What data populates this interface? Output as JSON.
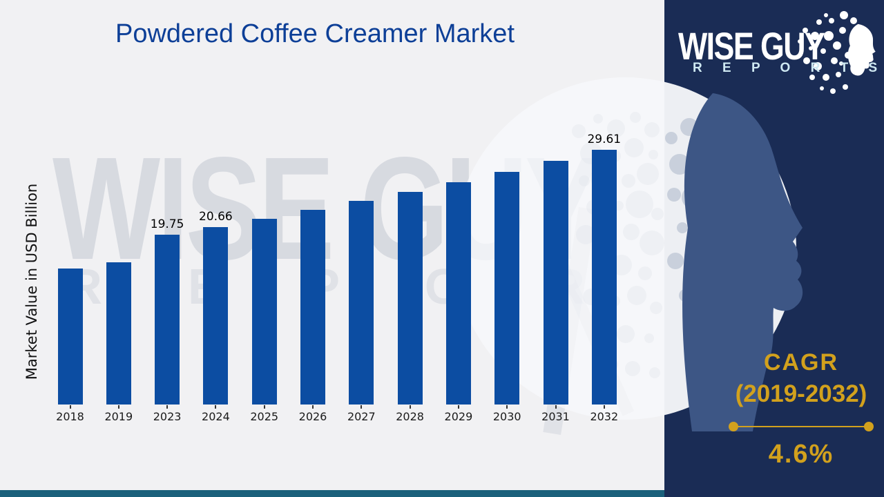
{
  "header": {
    "title": "Powdered Coffee Creamer Market"
  },
  "watermark": {
    "line1": "WISE GUY",
    "line2": "R E P O R T S"
  },
  "logo": {
    "line1": "WISE GUY",
    "line2": "R E P O R T S"
  },
  "cagr": {
    "label": "CAGR",
    "range": "(2019-2032)",
    "value": "4.6%"
  },
  "colors": {
    "bar": "#0c4da2",
    "title": "#0d3f97",
    "panel": "#1a2c55",
    "panel_face": "#3d5685",
    "panel_circle": "#edeff3",
    "panel_circle_dots": "#c9d0dc",
    "gold": "#d2a11d",
    "teal": "#1a607b",
    "chart_text": "#1a1a1a"
  },
  "chart_data": {
    "type": "bar",
    "title": "Powdered Coffee Creamer Market",
    "xlabel": "",
    "ylabel": "Market Value in USD Billion",
    "categories": [
      "2018",
      "2019",
      "2023",
      "2024",
      "2025",
      "2026",
      "2027",
      "2028",
      "2029",
      "2030",
      "2031",
      "2032"
    ],
    "values": [
      15.77,
      16.5,
      19.75,
      20.66,
      21.61,
      22.6,
      23.64,
      24.73,
      25.86,
      27.05,
      28.3,
      29.61
    ],
    "data_labels": {
      "2023": "19.75",
      "2024": "20.66",
      "2032": "29.61"
    },
    "ylim": [
      0,
      31
    ],
    "grid": false,
    "legend": "none",
    "bar_color": "#0c4da2"
  }
}
